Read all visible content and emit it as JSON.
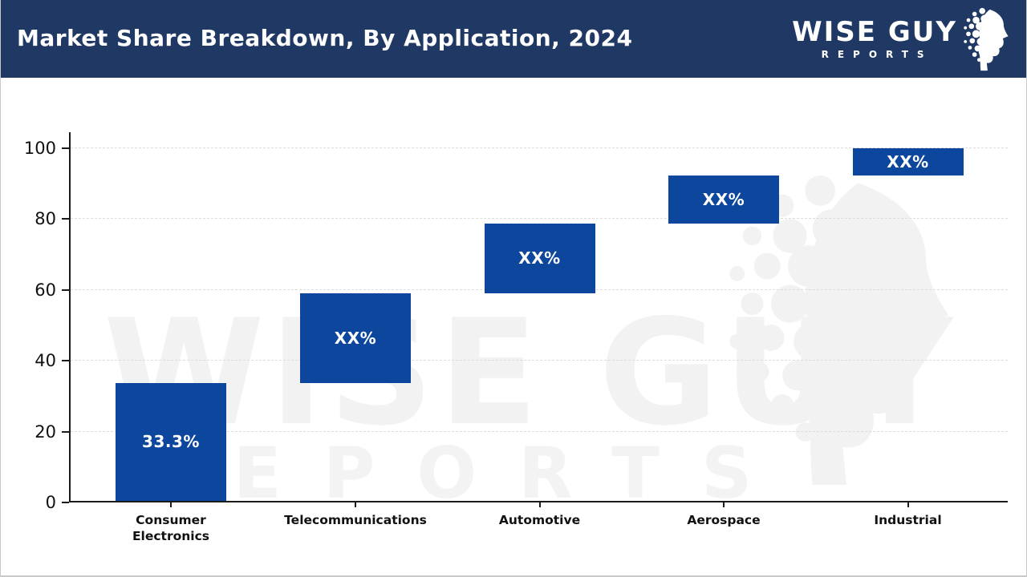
{
  "header": {
    "title": "Market Share Breakdown, By Application, 2024",
    "logo": {
      "line1": "WISE GUY",
      "line2": "REPORTS"
    }
  },
  "watermark": {
    "line1": "WISE GUY",
    "line2": "REPORTS"
  },
  "colors": {
    "header_bg": "#1F3864",
    "bar": "#0C479D",
    "grid": "#dcdcdc",
    "axis": "#1a1a1a",
    "bar_label": "#ffffff",
    "watermark": "#f2f2f2"
  },
  "chart_data": {
    "type": "bar",
    "subtype": "waterfall",
    "title": "Market Share Breakdown, By Application, 2024",
    "xlabel": "",
    "ylabel": "",
    "categories": [
      "Consumer\nElectronics",
      "Telecommunications",
      "Automotive",
      "Aerospace",
      "Industrial"
    ],
    "series": [
      {
        "name": "Market Share",
        "segments": [
          {
            "category": "Consumer Electronics",
            "start": 0,
            "end": 33.3,
            "label": "33.3%"
          },
          {
            "category": "Telecommunications",
            "start": 33.3,
            "end": 58.6,
            "label": "XX%"
          },
          {
            "category": "Automotive",
            "start": 58.6,
            "end": 78.3,
            "label": "XX%"
          },
          {
            "category": "Aerospace",
            "start": 78.3,
            "end": 91.8,
            "label": "XX%"
          },
          {
            "category": "Industrial",
            "start": 91.8,
            "end": 99.5,
            "label": "XX%"
          }
        ]
      }
    ],
    "yticks": [
      0,
      20,
      40,
      60,
      80,
      100
    ],
    "ylim": [
      0,
      104
    ],
    "grid": "horizontal-dashed",
    "legend": "none"
  }
}
